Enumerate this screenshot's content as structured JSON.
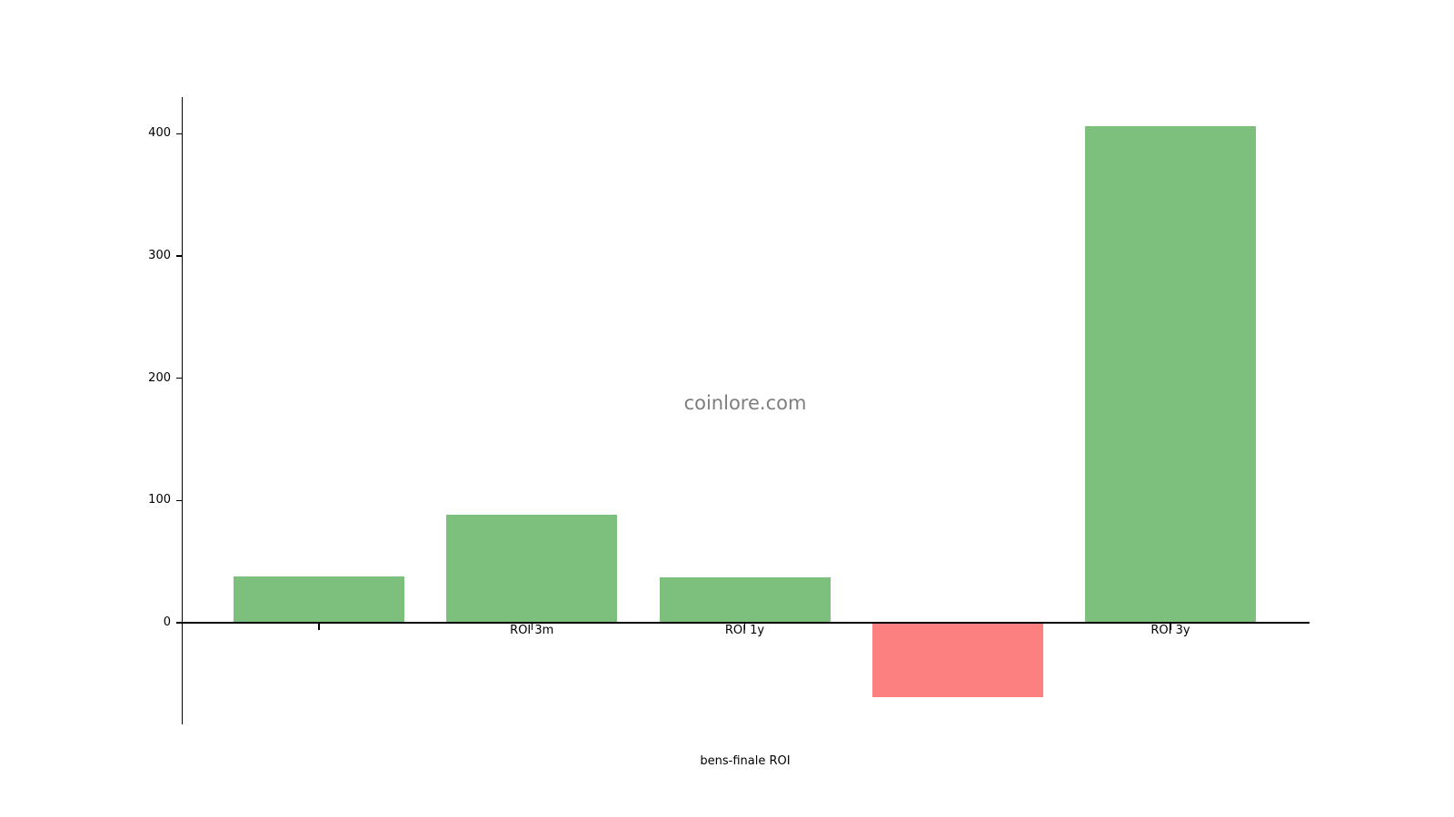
{
  "chart_data": {
    "type": "bar",
    "title": "",
    "xlabel": "bens-finale ROI",
    "ylabel": "",
    "categories": [
      "",
      "ROI 3m",
      "ROI 1y",
      "",
      "ROI 3y"
    ],
    "values": [
      38,
      88,
      37,
      -61,
      406
    ],
    "yticks": [
      0,
      100,
      200,
      300,
      400
    ],
    "ylim": [
      -83,
      429
    ],
    "grid": false,
    "legend": null,
    "positive_color": "#7dbf7d",
    "negative_color": "#fd8080",
    "axis_color": "#000000",
    "watermark": "coinlore.com",
    "watermark_color": "#7e7e7e"
  }
}
